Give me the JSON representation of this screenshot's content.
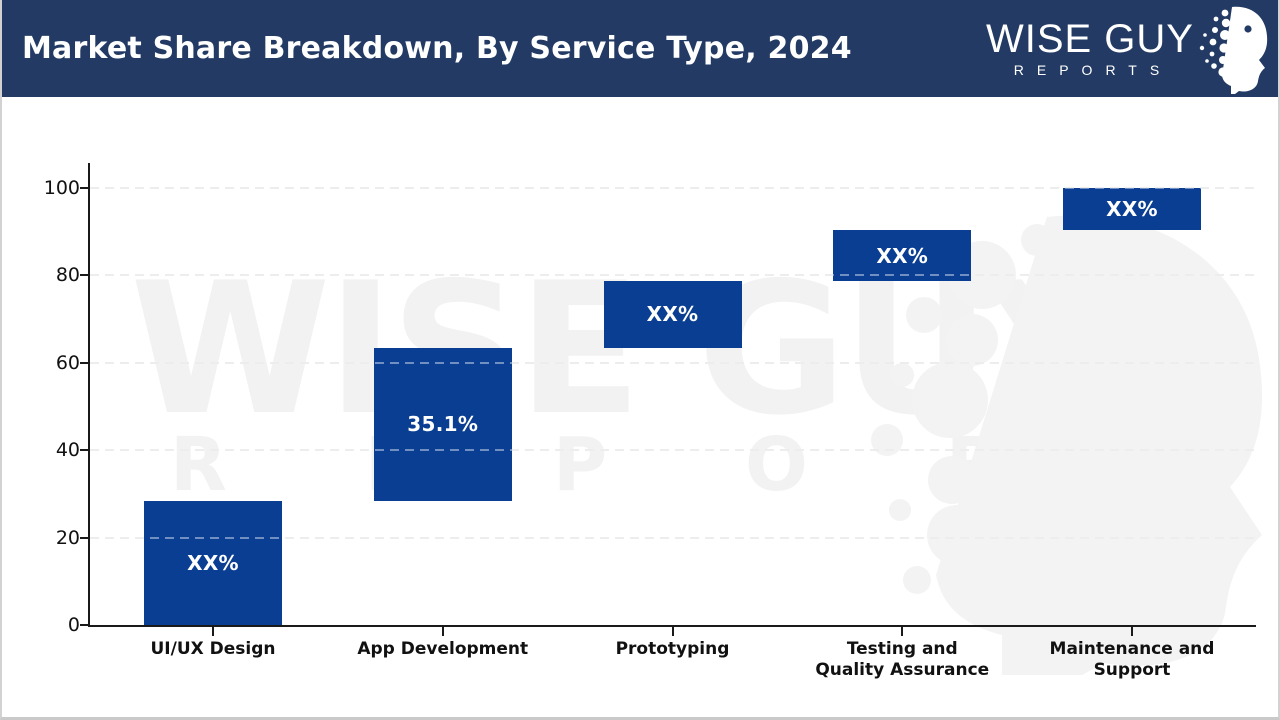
{
  "header": {
    "title": "Market Share Breakdown, By Service Type, 2024",
    "logo": {
      "line1": "WISE GUY",
      "line2": "REPORTS"
    }
  },
  "watermark": {
    "line1": "WISE GUY",
    "line2": "R E P O R T S"
  },
  "colors": {
    "header_bg": "#223a64",
    "bar": "#0a3e92",
    "grid": "#e0e0e0",
    "axis": "#1a1a1a",
    "watermark": "#f2f2f2"
  },
  "chart_data": {
    "type": "bar",
    "subtype": "waterfall",
    "title": "Market Share Breakdown, By Service Type, 2024",
    "categories": [
      "UI/UX Design",
      "App Development",
      "Prototyping",
      "Testing and\nQuality Assurance",
      "Maintenance and\nSupport"
    ],
    "series": [
      {
        "name": "Market Share %",
        "starts": [
          0,
          28.3,
          63.4,
          78.6,
          90.3
        ],
        "values": [
          28.3,
          35.1,
          15.2,
          11.7,
          9.7
        ]
      }
    ],
    "bar_labels": [
      "XX%",
      "35.1%",
      "XX%",
      "XX%",
      "XX%"
    ],
    "xlabel": "",
    "ylabel": "",
    "ylim": [
      0,
      100
    ],
    "yticks": [
      0,
      20,
      40,
      60,
      80,
      100
    ],
    "grid": "horizontal dashed",
    "legend": "none",
    "bar_color": "#0a3e92"
  }
}
